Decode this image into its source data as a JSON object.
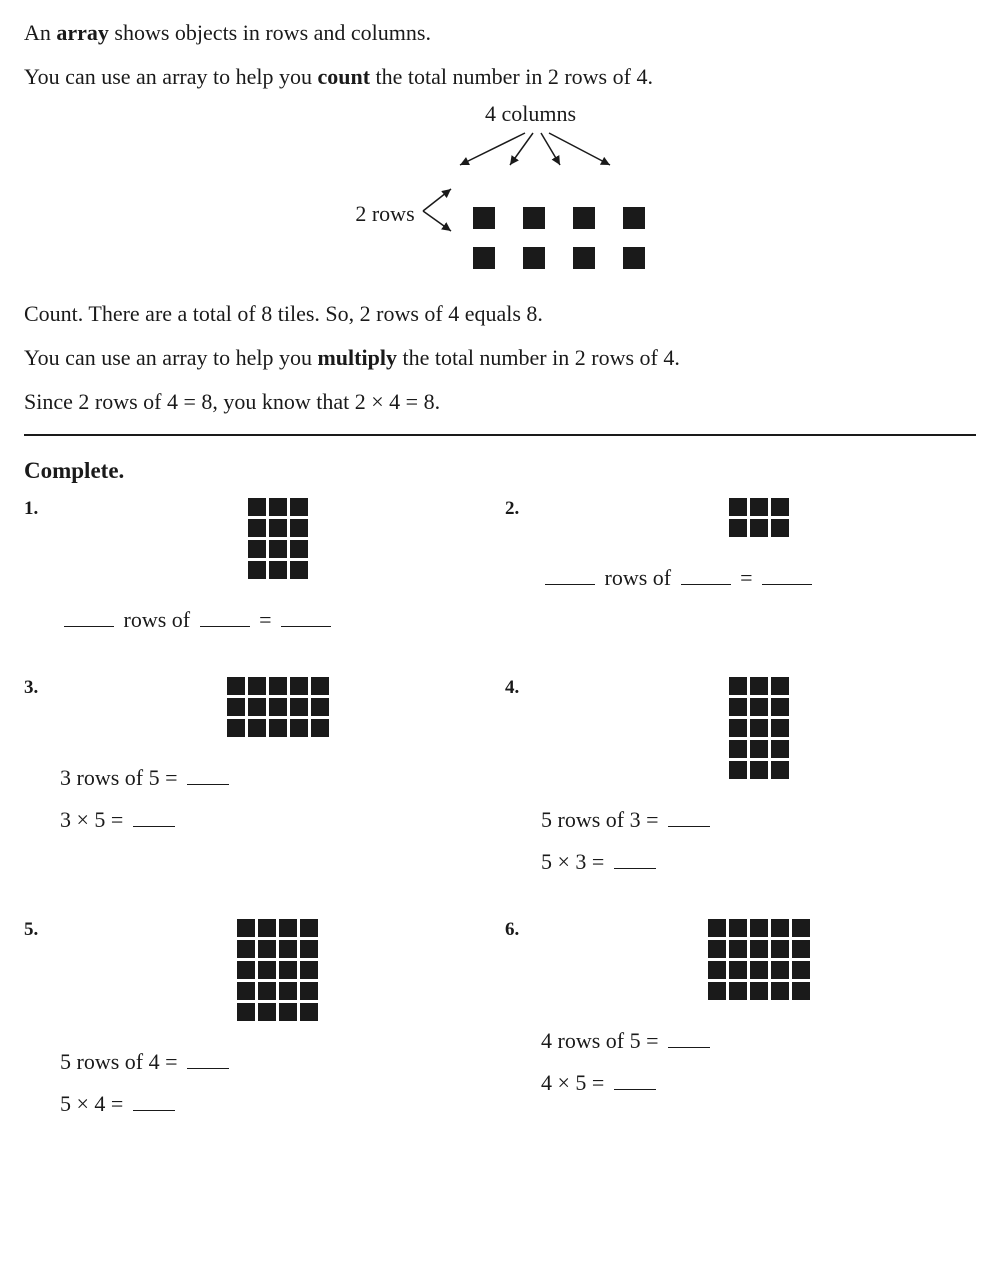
{
  "intro": {
    "p1_pre": "An ",
    "p1_b": "array",
    "p1_post": " shows objects in rows and columns.",
    "p2_pre": "You can use an array to help you ",
    "p2_b": "count",
    "p2_post": " the total number in 2 rows of 4.",
    "example": {
      "columns_label": "4 columns",
      "rows_label": "2 rows",
      "rows": 2,
      "cols": 4,
      "tile_color": "#1a1a1a"
    },
    "p3": "Count. There are a total of 8 tiles. So, 2 rows of 4 equals 8.",
    "p4_pre": "You can use an array to help you ",
    "p4_b": "multiply",
    "p4_post": " the total number in 2 rows of 4.",
    "p5": "Since 2 rows of 4 = 8, you know that 2 × 4 = 8."
  },
  "section_head": "Complete.",
  "problems": [
    {
      "num": "1.",
      "array": {
        "rows": 4,
        "cols": 3
      },
      "lines": [
        {
          "type": "rows_of_blank"
        }
      ]
    },
    {
      "num": "2.",
      "array": {
        "rows": 2,
        "cols": 3
      },
      "lines": [
        {
          "type": "rows_of_blank"
        }
      ]
    },
    {
      "num": "3.",
      "array": {
        "rows": 3,
        "cols": 5
      },
      "lines": [
        {
          "type": "filled",
          "text": "3 rows of 5 ="
        },
        {
          "type": "filled",
          "text": "3 × 5 ="
        }
      ]
    },
    {
      "num": "4.",
      "array": {
        "rows": 5,
        "cols": 3
      },
      "lines": [
        {
          "type": "filled",
          "text": "5 rows of 3 ="
        },
        {
          "type": "filled",
          "text": "5 × 3 ="
        }
      ]
    },
    {
      "num": "5.",
      "array": {
        "rows": 5,
        "cols": 4
      },
      "lines": [
        {
          "type": "filled",
          "text": "5 rows of 4 ="
        },
        {
          "type": "filled",
          "text": "5 × 4 ="
        }
      ]
    },
    {
      "num": "6.",
      "array": {
        "rows": 4,
        "cols": 5
      },
      "lines": [
        {
          "type": "filled",
          "text": "4 rows of 5 ="
        },
        {
          "type": "filled",
          "text": "4 × 5 ="
        }
      ]
    }
  ],
  "text": {
    "rows_of": " rows of ",
    "equals": " = "
  },
  "style": {
    "tile_color": "#1a1a1a",
    "tile_size": 18,
    "tile_gap": 3,
    "font_family": "Georgia",
    "body_font_size": 22
  }
}
